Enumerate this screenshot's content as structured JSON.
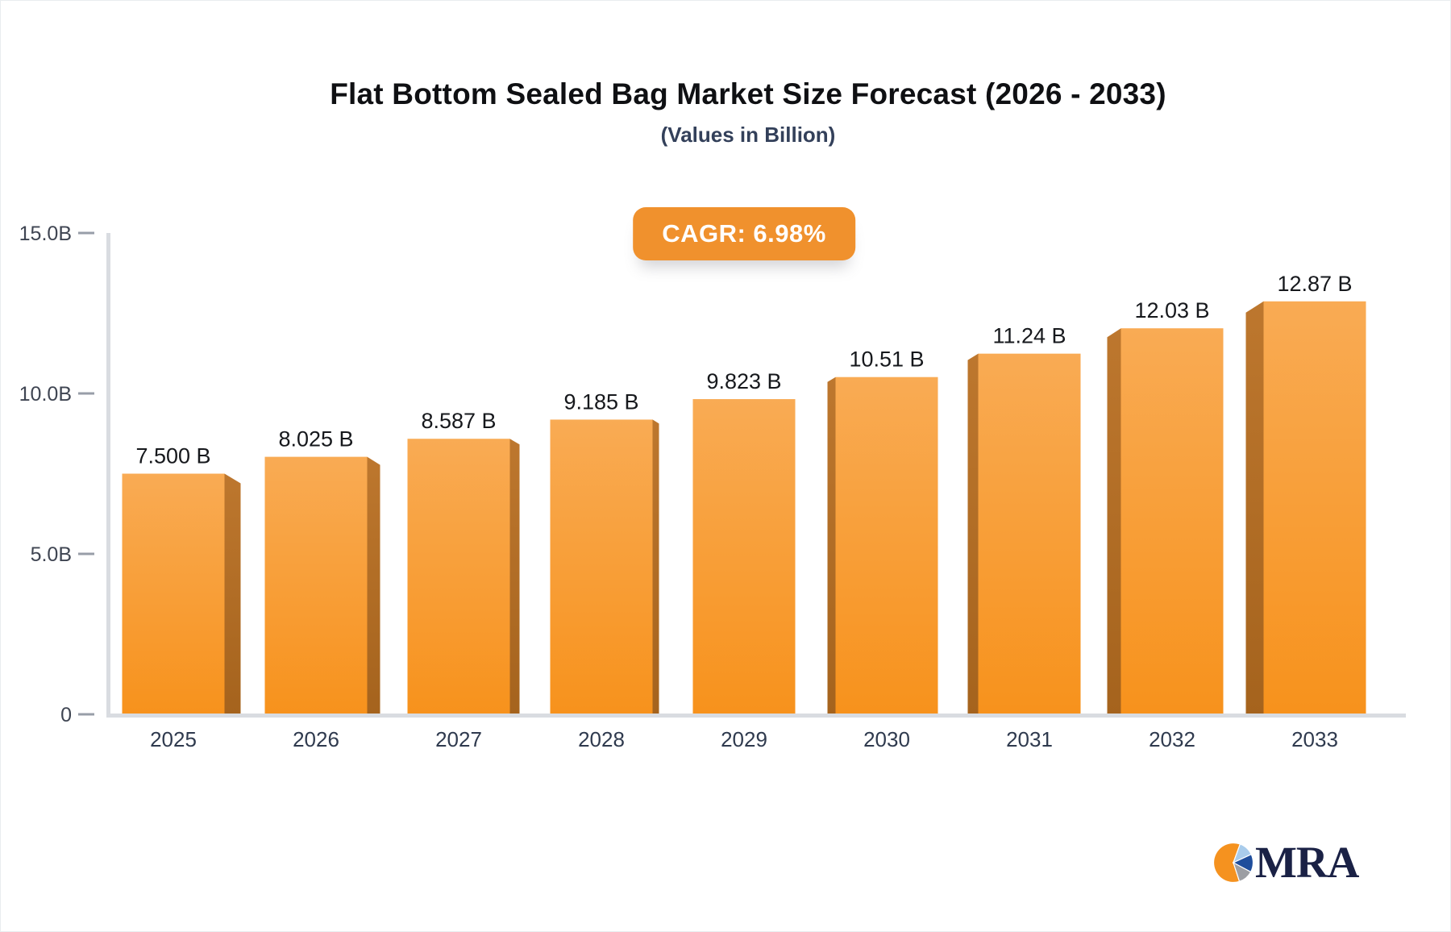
{
  "page": {
    "title": "Flat Bottom Sealed Bag Market Size Forecast (2026 - 2033)",
    "subtitle": "(Values in Billion)",
    "badge_label": "CAGR: 6.98%"
  },
  "chart_data": {
    "type": "bar",
    "title": "Flat Bottom Sealed Bag Market Size Forecast (2026 - 2033)",
    "subtitle": "(Values in Billion)",
    "annotation_badge": "CAGR: 6.98%",
    "categories": [
      "2025",
      "2026",
      "2027",
      "2028",
      "2029",
      "2030",
      "2031",
      "2032",
      "2033"
    ],
    "values": [
      7.5,
      8.025,
      8.587,
      9.185,
      9.823,
      10.51,
      11.24,
      12.03,
      12.87
    ],
    "value_labels": [
      "7.500 B",
      "8.025 B",
      "8.587 B",
      "9.185 B",
      "9.823 B",
      "10.51 B",
      "11.24 B",
      "12.03 B",
      "12.87 B"
    ],
    "xlabel": "",
    "ylabel": "",
    "ylim": [
      0,
      15
    ],
    "y_ticks": [
      {
        "value": 15,
        "label": "15.0B"
      },
      {
        "value": 10,
        "label": "10.0B"
      },
      {
        "value": 5,
        "label": "5.0B"
      },
      {
        "value": 0,
        "label": "0"
      }
    ],
    "grid": false,
    "legend": false,
    "bar_style": "3d-gradient",
    "colors": {
      "bar_face_top": "#F9AB54",
      "bar_face_bottom": "#F7921C",
      "bar_side_top": "#BD772E",
      "bar_side_bottom": "#A5631D",
      "axis_line": "#D9DCE1",
      "tick_dash": "#989EA8",
      "tick_label": "#3F4552",
      "category_label": "#2F3A4E",
      "value_label": "#16181C",
      "badge_background": "#F0912D",
      "badge_text": "#FFFFFF"
    }
  },
  "logo": {
    "text": "MRA",
    "text_color": "#1A2145",
    "pie_colors": {
      "orange": "#F5921F",
      "light_blue": "#A9CCEB",
      "dark_blue": "#1F4E9C",
      "gray": "#9C9EA3"
    }
  }
}
